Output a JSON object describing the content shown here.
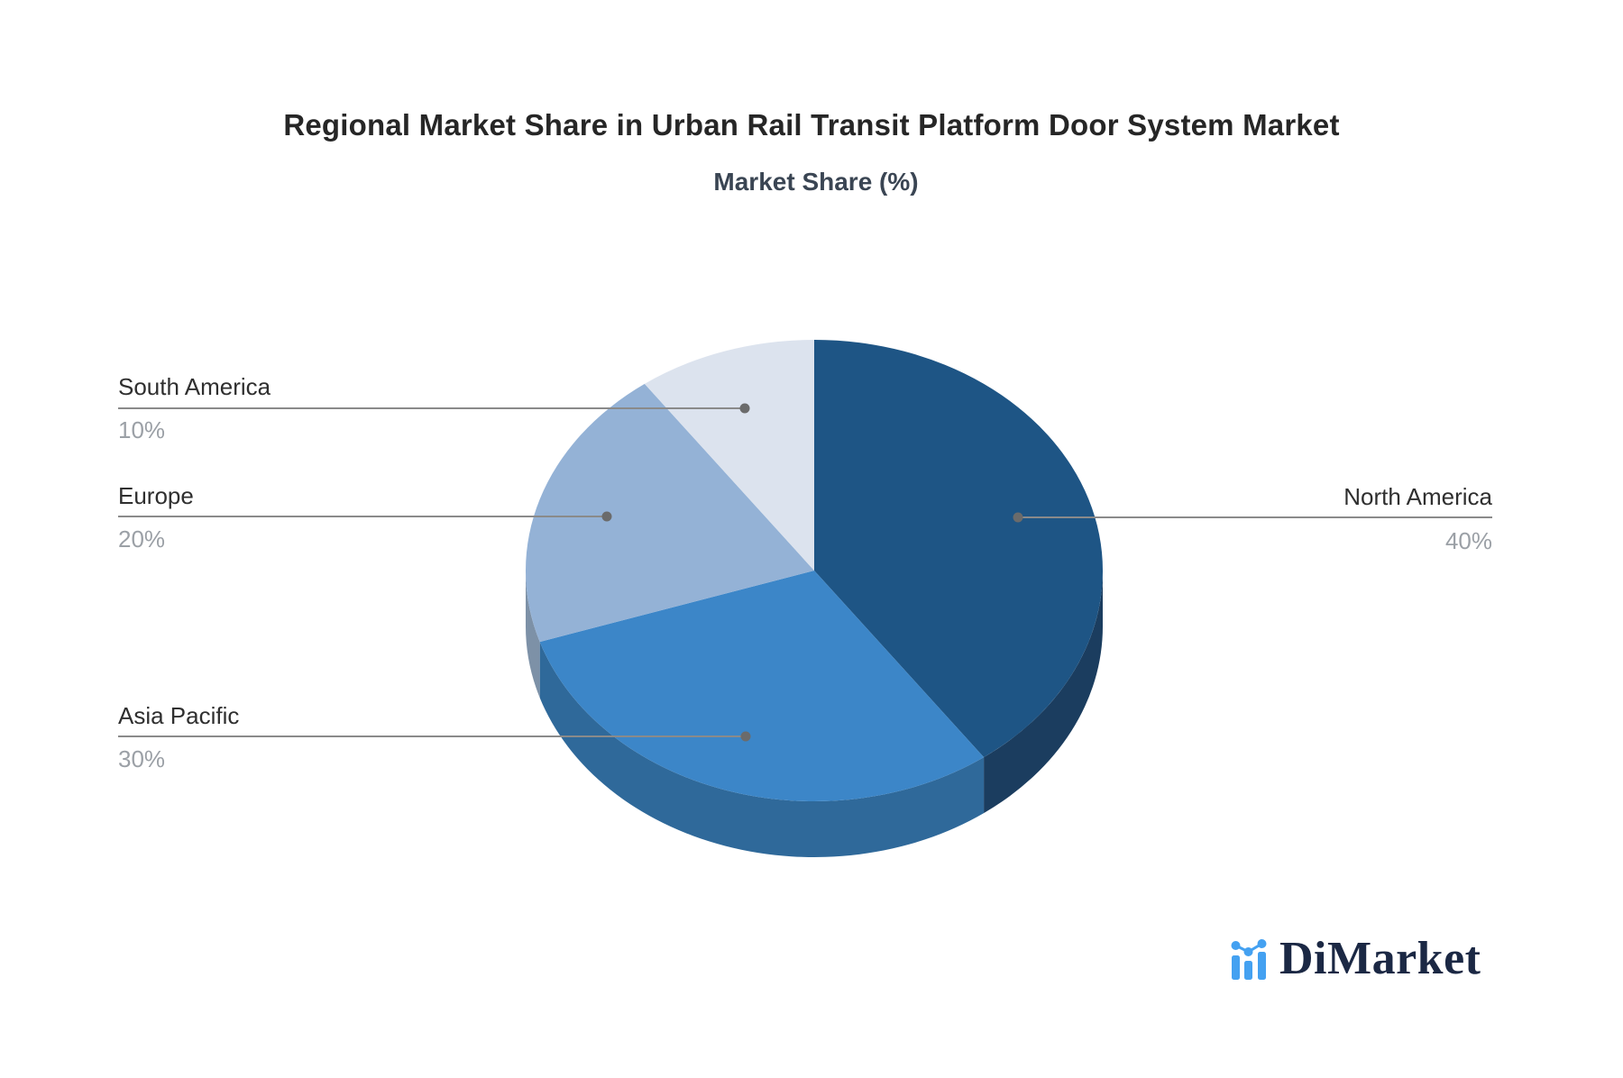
{
  "title": "Regional Market Share in Urban Rail Transit Platform Door System Market",
  "subtitle": "Market Share (%)",
  "chart_data": {
    "type": "pie",
    "title": "Regional Market Share in Urban Rail Transit Platform Door System Market",
    "subtitle": "Market Share (%)",
    "unit": "%",
    "style": "3d-pie",
    "start_angle_deg": 0,
    "direction": "clockwise",
    "legend_position": "callout-labels",
    "slices": [
      {
        "label": "North America",
        "value": 40,
        "pct_label": "40%",
        "color": "#1E5585",
        "wall_color": "#1B3D5F"
      },
      {
        "label": "Asia Pacific",
        "value": 30,
        "pct_label": "30%",
        "color": "#3C86C8",
        "wall_color": "#2F699A"
      },
      {
        "label": "Europe",
        "value": 20,
        "pct_label": "20%",
        "color": "#94B2D6",
        "wall_color": "#7D91A7"
      },
      {
        "label": "South America",
        "value": 10,
        "pct_label": "10%",
        "color": "#DCE3EE",
        "wall_color": "#B9C3D2"
      }
    ],
    "leader_line_color": "#8A8A8A",
    "dot_color": "#6B6B6B"
  },
  "logo": {
    "text": "DiMarket",
    "icon": "bar-line-chart-icon",
    "text_color": "#1B2844",
    "icon_color": "#44A1F1"
  }
}
